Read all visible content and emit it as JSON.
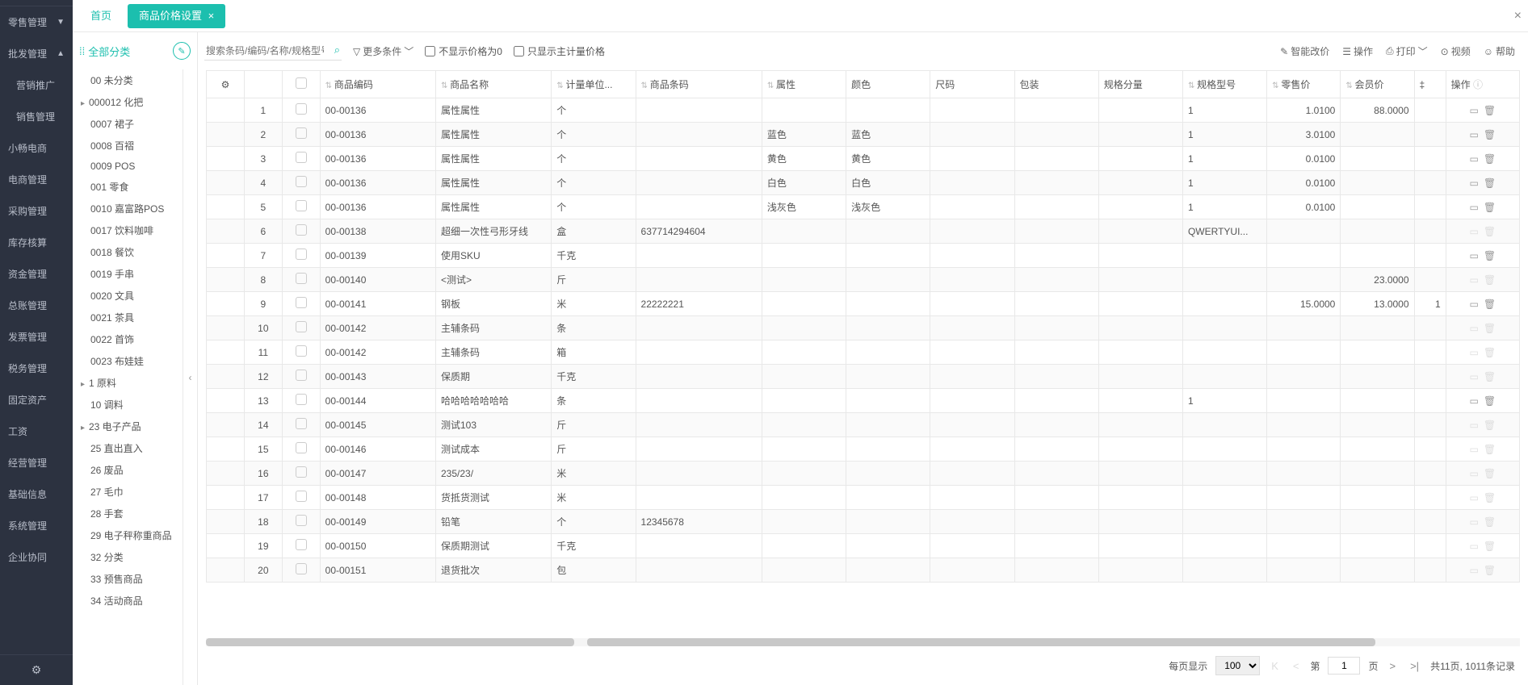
{
  "sidebar": {
    "items": [
      {
        "label": "零售管理",
        "arrow": "▼"
      },
      {
        "label": "批发管理",
        "arrow": "▲"
      },
      {
        "label": "营销推广",
        "sub": true
      },
      {
        "label": "销售管理",
        "sub": true
      },
      {
        "label": "小畅电商"
      },
      {
        "label": "电商管理"
      },
      {
        "label": "采购管理"
      },
      {
        "label": "库存核算"
      },
      {
        "label": "资金管理"
      },
      {
        "label": "总账管理"
      },
      {
        "label": "发票管理"
      },
      {
        "label": "税务管理"
      },
      {
        "label": "固定资产"
      },
      {
        "label": "工资"
      },
      {
        "label": "经营管理"
      },
      {
        "label": "基础信息"
      },
      {
        "label": "系统管理"
      },
      {
        "label": "企业协同"
      }
    ]
  },
  "tabs": {
    "home": "首页",
    "active": "商品价格设置",
    "close": "×"
  },
  "category": {
    "header": "全部分类",
    "items": [
      {
        "label": "00 未分类"
      },
      {
        "label": "000012 化把",
        "exp": true
      },
      {
        "label": "0007 裙子"
      },
      {
        "label": "0008 百褶"
      },
      {
        "label": "0009 POS"
      },
      {
        "label": "001 零食"
      },
      {
        "label": "0010 嘉富路POS"
      },
      {
        "label": "0017 饮料咖啡"
      },
      {
        "label": "0018 餐饮"
      },
      {
        "label": "0019 手串"
      },
      {
        "label": "0020 文具"
      },
      {
        "label": "0021 茶具"
      },
      {
        "label": "0022 首饰"
      },
      {
        "label": "0023 布娃娃"
      },
      {
        "label": "1 原料",
        "exp": true
      },
      {
        "label": "10 调料"
      },
      {
        "label": "23 电子产品",
        "exp": true
      },
      {
        "label": "25 直出直入"
      },
      {
        "label": "26 废品"
      },
      {
        "label": "27 毛巾"
      },
      {
        "label": "28 手套"
      },
      {
        "label": "29 电子秤称重商品"
      },
      {
        "label": "32 分类"
      },
      {
        "label": "33 预售商品"
      },
      {
        "label": "34 活动商品"
      }
    ]
  },
  "toolbar": {
    "search_placeholder": "搜索条码/编码/名称/规格型号/别名",
    "more": "更多条件",
    "hide_zero": "不显示价格为0",
    "only_main": "只显示主计量价格",
    "smart": "智能改价",
    "operate": "操作",
    "print": "打印",
    "video": "视频",
    "help": "帮助"
  },
  "table": {
    "headers": {
      "code": "商品编码",
      "name": "商品名称",
      "unit": "计量单位...",
      "barcode": "商品条码",
      "attr": "属性",
      "color": "颜色",
      "size": "尺码",
      "pack": "包装",
      "spec": "规格分量",
      "model": "规格型号",
      "retail": "零售价",
      "member": "会员价",
      "op": "操作"
    },
    "rows": [
      {
        "idx": 1,
        "code": "00-00136",
        "name": "属性属性",
        "unit": "个",
        "barcode": "",
        "attr": "",
        "color": "",
        "model": "1",
        "retail": "1.0100",
        "member": "88.0000",
        "op": true
      },
      {
        "idx": 2,
        "code": "00-00136",
        "name": "属性属性",
        "unit": "个",
        "barcode": "",
        "attr": "蓝色",
        "color": "蓝色",
        "model": "1",
        "retail": "3.0100",
        "member": "",
        "op": true
      },
      {
        "idx": 3,
        "code": "00-00136",
        "name": "属性属性",
        "unit": "个",
        "barcode": "",
        "attr": "黄色",
        "color": "黄色",
        "model": "1",
        "retail": "0.0100",
        "member": "",
        "op": true
      },
      {
        "idx": 4,
        "code": "00-00136",
        "name": "属性属性",
        "unit": "个",
        "barcode": "",
        "attr": "白色",
        "color": "白色",
        "model": "1",
        "retail": "0.0100",
        "member": "",
        "op": true
      },
      {
        "idx": 5,
        "code": "00-00136",
        "name": "属性属性",
        "unit": "个",
        "barcode": "",
        "attr": "浅灰色",
        "color": "浅灰色",
        "model": "1",
        "retail": "0.0100",
        "member": "",
        "op": true
      },
      {
        "idx": 6,
        "code": "00-00138",
        "name": "超细一次性弓形牙线",
        "unit": "盒",
        "barcode": "637714294604",
        "attr": "",
        "color": "",
        "model": "QWERTYUI...",
        "retail": "",
        "member": "",
        "op": false
      },
      {
        "idx": 7,
        "code": "00-00139",
        "name": "使用SKU",
        "unit": "千克",
        "barcode": "",
        "attr": "",
        "color": "",
        "model": "",
        "retail": "",
        "member": "",
        "op": true
      },
      {
        "idx": 8,
        "code": "00-00140",
        "name": "<测试>",
        "unit": "斤",
        "barcode": "",
        "attr": "",
        "color": "",
        "model": "",
        "retail": "",
        "member": "23.0000",
        "op": false
      },
      {
        "idx": 9,
        "code": "00-00141",
        "name": "钢板",
        "unit": "米",
        "barcode": "22222221",
        "attr": "",
        "color": "",
        "model": "",
        "retail": "15.0000",
        "member": "13.0000",
        "ext": "1",
        "op": true
      },
      {
        "idx": 10,
        "code": "00-00142",
        "name": "主辅条码",
        "unit": "条",
        "barcode": "",
        "attr": "",
        "color": "",
        "model": "",
        "retail": "",
        "member": "",
        "op": false
      },
      {
        "idx": 11,
        "code": "00-00142",
        "name": "主辅条码",
        "unit": "箱",
        "barcode": "",
        "attr": "",
        "color": "",
        "model": "",
        "retail": "",
        "member": "",
        "op": false
      },
      {
        "idx": 12,
        "code": "00-00143",
        "name": "保质期",
        "unit": "千克",
        "barcode": "",
        "attr": "",
        "color": "",
        "model": "",
        "retail": "",
        "member": "",
        "op": false
      },
      {
        "idx": 13,
        "code": "00-00144",
        "name": "哈哈哈哈哈哈哈",
        "unit": "条",
        "barcode": "",
        "attr": "",
        "color": "",
        "model": "1",
        "retail": "",
        "member": "",
        "op": true
      },
      {
        "idx": 14,
        "code": "00-00145",
        "name": "测试103",
        "unit": "斤",
        "barcode": "",
        "attr": "",
        "color": "",
        "model": "",
        "retail": "",
        "member": "",
        "op": false
      },
      {
        "idx": 15,
        "code": "00-00146",
        "name": "测试成本",
        "unit": "斤",
        "barcode": "",
        "attr": "",
        "color": "",
        "model": "",
        "retail": "",
        "member": "",
        "op": false
      },
      {
        "idx": 16,
        "code": "00-00147",
        "name": "235/23/",
        "unit": "米",
        "barcode": "",
        "attr": "",
        "color": "",
        "model": "",
        "retail": "",
        "member": "",
        "op": false
      },
      {
        "idx": 17,
        "code": "00-00148",
        "name": "货抵货测试",
        "unit": "米",
        "barcode": "",
        "attr": "",
        "color": "",
        "model": "",
        "retail": "",
        "member": "",
        "op": false
      },
      {
        "idx": 18,
        "code": "00-00149",
        "name": "铅笔",
        "unit": "个",
        "barcode": "12345678",
        "attr": "",
        "color": "",
        "model": "",
        "retail": "",
        "member": "",
        "op": false
      },
      {
        "idx": 19,
        "code": "00-00150",
        "name": "保质期测试",
        "unit": "千克",
        "barcode": "",
        "attr": "",
        "color": "",
        "model": "",
        "retail": "",
        "member": "",
        "op": false
      },
      {
        "idx": 20,
        "code": "00-00151",
        "name": "退货批次",
        "unit": "包",
        "barcode": "",
        "attr": "",
        "color": "",
        "model": "",
        "retail": "",
        "member": "",
        "op": false
      }
    ]
  },
  "pager": {
    "per_label": "每页显示",
    "per_value": "100",
    "page_prefix": "第",
    "page_value": "1",
    "page_suffix": "页",
    "summary": "共11页, 1011条记录"
  }
}
